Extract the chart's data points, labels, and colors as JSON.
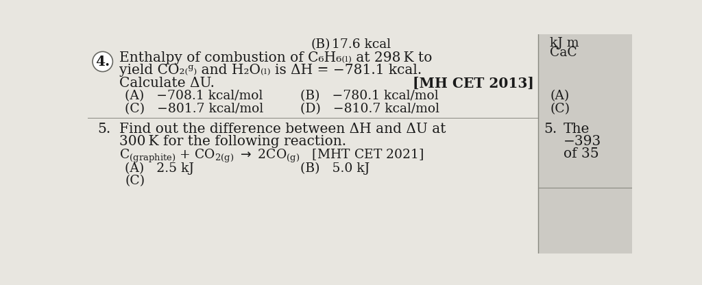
{
  "bg_color": "#e8e6e0",
  "text_color": "#1a1a1a",
  "right_panel_bg": "#cccac4",
  "font_size_main": 14.5,
  "font_size_ref": 13.5,
  "font_size_opts": 13.5,
  "font_size_small": 11,
  "top_partial_text": "(B)    17.6 kcal",
  "right_top1": "kJ m",
  "right_top2": "CaC",
  "right_mid1": "(A)",
  "right_mid2": "(C)",
  "right_q5_num": "5.",
  "right_q5a": "The",
  "right_q5b": "−393",
  "right_q5c": "of 35",
  "q4_line1": "Enthalpy of combustion of C₆H₆₍ₗ₎ at 298 K to",
  "q4_line2": "yield CO₂₍ᵍ₎ and H₂O₍ₗ₎ is ΔH = −781.1 kcal.",
  "q4_line3": "Calculate ΔU.",
  "q4_ref": "[MH CET 2013]",
  "q4_optA_l": "(A)   −708.1 kcal/mol",
  "q4_optB_r": "(B)   −780.1 kcal/mol",
  "q4_optC_l": "(C)   −801.7 kcal/mol",
  "q4_optD_r": "(D)   −810.7 kcal/mol",
  "q5_line1": "Find out the difference between ΔH and ΔU at",
  "q5_line2": "300 K for the following reaction.",
  "q5_line3_a": "C",
  "q5_line3_b": "(graphite)",
  "q5_line3_c": " + CO",
  "q5_line3_d": "2(g)",
  "q5_line3_e": " → 2CO",
  "q5_line3_f": "(g)",
  "q5_ref": "[MHT CET 2021]",
  "q5_optA": "(A)   2.5 kJ",
  "q5_optB": "(B)   5.0 kJ",
  "q5_optC": "(C)"
}
